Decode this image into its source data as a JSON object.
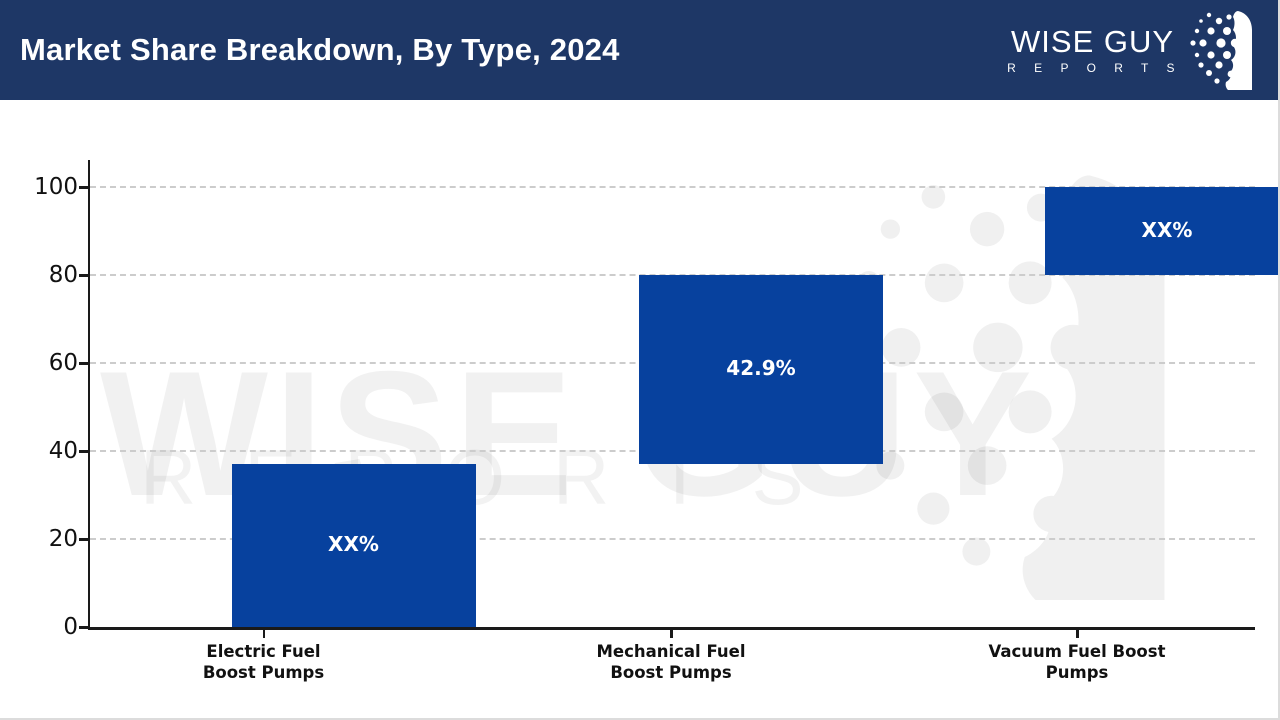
{
  "header": {
    "title": "Market Share Breakdown, By Type, 2024",
    "brand": {
      "line1": "WISE GUY",
      "line2": "R E P O R T S"
    }
  },
  "watermark": {
    "line1": "WISE GUY",
    "line2": "REPORTS"
  },
  "chart_data": {
    "type": "bar",
    "variant": "floating-waterfall-segments",
    "title": "Market Share Breakdown, By Type, 2024",
    "xlabel": "",
    "ylabel": "",
    "categories": [
      "Electric Fuel Boost Pumps",
      "Mechanical Fuel Boost Pumps",
      "Vacuum Fuel Boost Pumps"
    ],
    "category_lines": [
      [
        "Electric Fuel",
        "Boost Pumps"
      ],
      [
        "Mechanical Fuel",
        "Boost Pumps"
      ],
      [
        "Vacuum Fuel Boost",
        "Pumps"
      ]
    ],
    "bars": [
      {
        "category": "Electric Fuel Boost Pumps",
        "from": 0,
        "to": 37.1,
        "label": "XX%"
      },
      {
        "category": "Mechanical Fuel Boost Pumps",
        "from": 37.1,
        "to": 80,
        "label": "42.9%"
      },
      {
        "category": "Vacuum Fuel Boost Pumps",
        "from": 80,
        "to": 100,
        "label": "XX%"
      }
    ],
    "estimated_segment_sizes": [
      37.1,
      42.9,
      20
    ],
    "yticks": [
      0,
      20,
      40,
      60,
      80,
      100
    ],
    "ylim": [
      0,
      106
    ],
    "grid": "horizontal-dashed",
    "legend": null,
    "bar_color": "#07419e"
  },
  "colors": {
    "header_navy": "#1e3766",
    "bar_blue": "#07419e",
    "gridline": "#cccccc",
    "axis": "#1a1a1a",
    "tick_text": "#111111",
    "bar_label_text": "#ffffff",
    "watermark": "#f2f2f2",
    "page_edge": "#dcdcdc"
  }
}
